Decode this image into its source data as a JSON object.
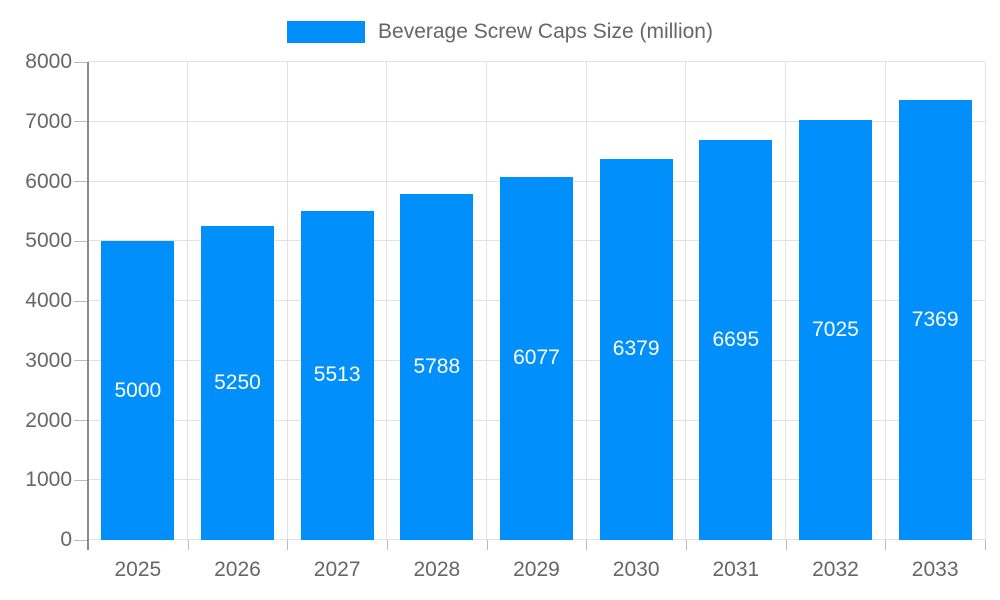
{
  "legend": {
    "label": "Beverage Screw Caps Size (million)",
    "swatch_color": "#008FFB"
  },
  "colors": {
    "bar": "#008FFB",
    "axis_text": "#666666",
    "grid_line": "#e2e2e2",
    "axis_line": "#8a8a8a",
    "tick": "#bbbbbb",
    "bar_label": "#ffffff",
    "background": "#ffffff"
  },
  "chart_data": {
    "type": "bar",
    "title": "",
    "legend_entries": [
      "Beverage Screw Caps Size (million)"
    ],
    "legend_position": "top",
    "categories": [
      "2025",
      "2026",
      "2027",
      "2028",
      "2029",
      "2030",
      "2031",
      "2032",
      "2033"
    ],
    "values": [
      5000,
      5250,
      5513,
      5788,
      6077,
      6379,
      6695,
      7025,
      7369
    ],
    "bar_labels": [
      "5000",
      "5250",
      "5513",
      "5788",
      "6077",
      "6379",
      "6695",
      "7025",
      "7369"
    ],
    "xlabel": "",
    "ylabel": "",
    "ylim": [
      0,
      8000
    ],
    "yticks": [
      0,
      1000,
      2000,
      3000,
      4000,
      5000,
      6000,
      7000,
      8000
    ],
    "grid": true
  }
}
